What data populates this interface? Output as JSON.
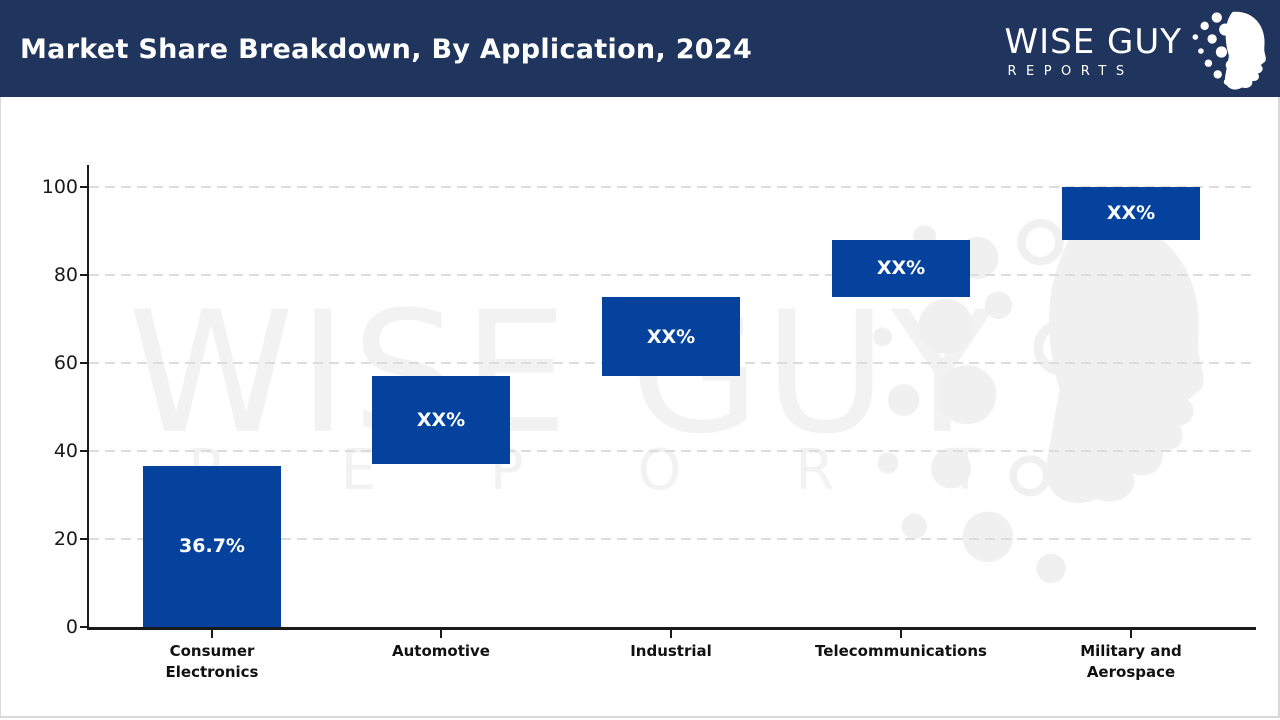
{
  "header": {
    "title": "Market Share Breakdown, By Application, 2024",
    "logo": {
      "name_top": "WISE GUY",
      "name_bottom": "REPORTS"
    }
  },
  "watermark": {
    "text_top": "WISE GUY",
    "text_bottom": "R E P O R T S"
  },
  "colors": {
    "header_bg": "#20355E",
    "bar": "#05429E",
    "bar_label": "#FFFFFF",
    "grid": "#DCDCDC",
    "axis": "#1A1A1A",
    "watermark": "#F2F2F2",
    "hairline": "#D9D9D9"
  },
  "chart_data": {
    "type": "bar",
    "subtype": "waterfall",
    "title": "Market Share Breakdown, By Application, 2024",
    "xlabel": "",
    "ylabel": "",
    "ylim": [
      0,
      105
    ],
    "y_ticks": [
      0,
      20,
      40,
      60,
      80,
      100
    ],
    "grid": "horizontal-dashed",
    "legend": "none",
    "bar_color": "#05429E",
    "categories": [
      "Consumer Electronics",
      "Automotive",
      "Industrial",
      "Telecommunications",
      "Military and Aerospace"
    ],
    "category_lines": [
      [
        "Consumer",
        "Electronics"
      ],
      [
        "Automotive"
      ],
      [
        "Industrial"
      ],
      [
        "Telecommunications"
      ],
      [
        "Military and",
        "Aerospace"
      ]
    ],
    "segments": [
      {
        "category": "Consumer Electronics",
        "start": 0,
        "end": 36.7,
        "label": "36.7%"
      },
      {
        "category": "Automotive",
        "start": 37,
        "end": 57,
        "label": "XX%"
      },
      {
        "category": "Industrial",
        "start": 57,
        "end": 75,
        "label": "XX%"
      },
      {
        "category": "Telecommunications",
        "start": 75,
        "end": 88,
        "label": "XX%"
      },
      {
        "category": "Military and Aerospace",
        "start": 88,
        "end": 100,
        "label": "XX%"
      }
    ]
  }
}
